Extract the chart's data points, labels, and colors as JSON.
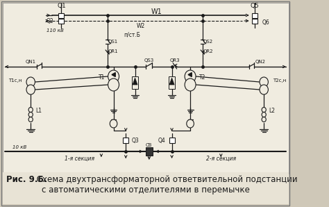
{
  "bg_color": "#cfc8b8",
  "inner_bg": "#f0ece0",
  "line_color": "#1a1a1a",
  "title_bold": "Рис. 9.6.",
  "title_text": " Схема двухтрансформаторной ответвительной подстанции",
  "title_text2": "с автоматическими отделителями в перемычке",
  "fig_width": 4.74,
  "fig_height": 2.98,
  "dpi": 100
}
